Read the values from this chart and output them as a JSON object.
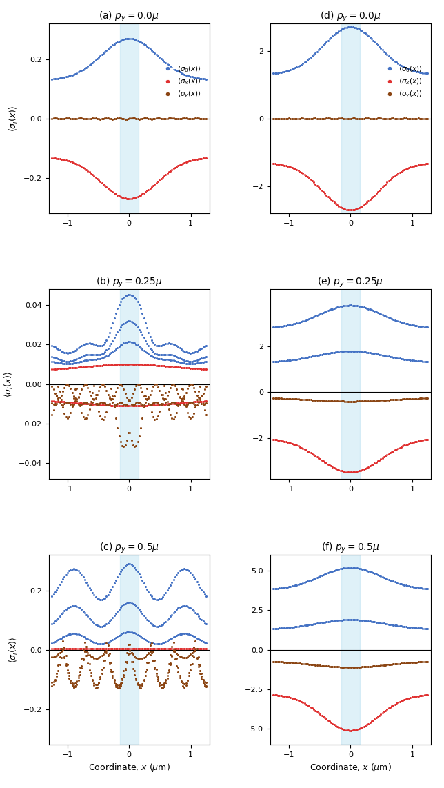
{
  "titles": [
    "(a) $p_y = 0.0\\mu$",
    "(b) $p_y = 0.25\\mu$",
    "(c) $p_y = 0.5\\mu$",
    "(d) $p_y = 0.0\\mu$",
    "(e) $p_y = 0.25\\mu$",
    "(f) $p_y = 0.5\\mu$"
  ],
  "ylabel": "$\\langle\\sigma_i(x)\\rangle$",
  "xlabel": "Coordinate, $x$ ($\\mu$m)",
  "colors": {
    "blue": "#4472C4",
    "red": "#E03030",
    "brown": "#8B4513",
    "shading": "#B8E0F0"
  },
  "shading_alpha": 0.45,
  "marker_size": 2.2,
  "line_width": 0.8
}
